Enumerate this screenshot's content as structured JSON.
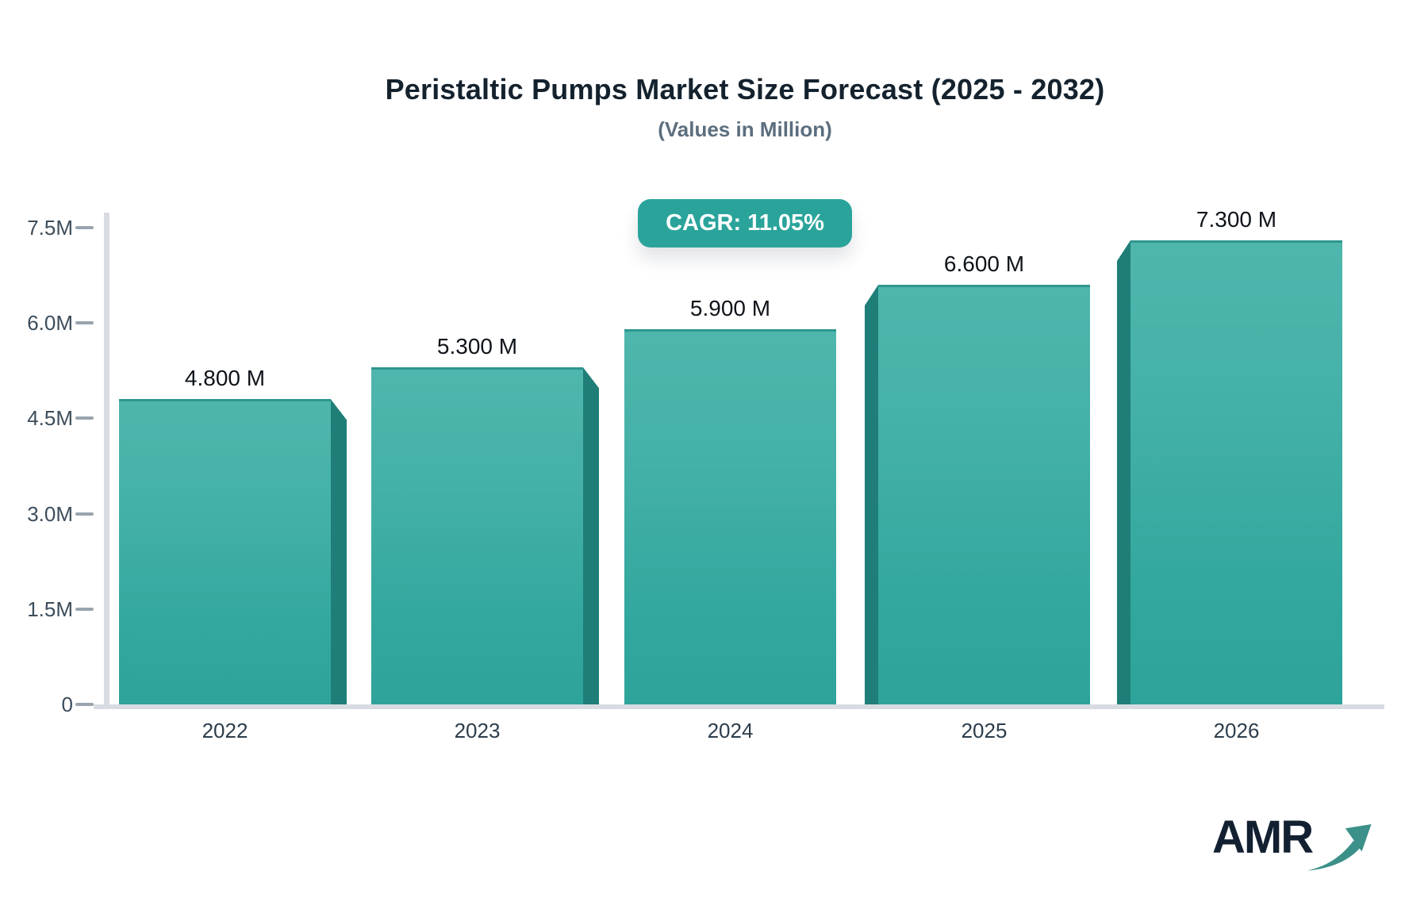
{
  "chart_data": {
    "type": "bar",
    "title": "Peristaltic Pumps Market Size Forecast (2025 - 2032)",
    "subtitle": "(Values in Million)",
    "cagr_label": "CAGR: 11.05%",
    "categories": [
      "2022",
      "2023",
      "2024",
      "2025",
      "2026"
    ],
    "values": [
      4.8,
      5.3,
      5.9,
      6.6,
      7.3
    ],
    "value_labels": [
      "4.800 M",
      "5.300 M",
      "5.900 M",
      "6.600 M",
      "7.300 M"
    ],
    "unit": "Million",
    "ylim": [
      0,
      7.5
    ],
    "ytick_values": [
      7.5,
      6.0,
      4.5,
      3.0,
      1.5,
      0
    ],
    "ytick_labels": [
      "7.5M",
      "6.0M",
      "4.5M",
      "3.0M",
      "1.5M",
      "0"
    ],
    "grid": false,
    "legend": false,
    "bar_style": "3d-extruded",
    "colors": {
      "bar_top": "#4fb6ad",
      "bar_bottom": "#2ea39a",
      "bar_side": "#1f7e78",
      "badge_bg": "#2aa49b",
      "badge_text": "#ffffff",
      "axis_line": "#d8dce2",
      "tick_mark": "#9aa4ae",
      "title_text": "#14222e",
      "subtitle_text": "#5c6e7e",
      "value_label_text": "#0f141a",
      "axis_label_text": "#3d4d5b"
    }
  },
  "logo": {
    "text": "AMR",
    "text_color": "#122031",
    "arrow_color": "#3b9189"
  }
}
